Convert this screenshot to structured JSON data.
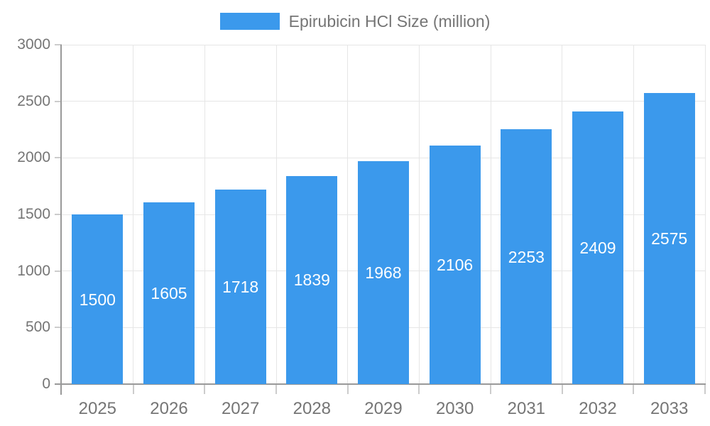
{
  "legend": {
    "label": "Epirubicin HCl Size (million)",
    "swatch_color": "#3b99ec"
  },
  "chart_data": {
    "type": "bar",
    "title": "Epirubicin HCl Size (million)",
    "categories": [
      "2025",
      "2026",
      "2027",
      "2028",
      "2029",
      "2030",
      "2031",
      "2032",
      "2033"
    ],
    "values": [
      1500,
      1605,
      1718,
      1839,
      1968,
      2106,
      2253,
      2409,
      2575
    ],
    "xlabel": "",
    "ylabel": "",
    "ylim": [
      0,
      3000
    ],
    "yticks": [
      0,
      500,
      1000,
      1500,
      2000,
      2500,
      3000
    ],
    "grid": true,
    "legend_position": "top-center",
    "bar_label_position": "inside-center",
    "colors": {
      "bar": "#3b99ec",
      "bar_label": "#ffffff",
      "axis_line": "#999999",
      "tick": "#cccccc",
      "grid": "#e6e6e6",
      "text": "#757575"
    }
  }
}
